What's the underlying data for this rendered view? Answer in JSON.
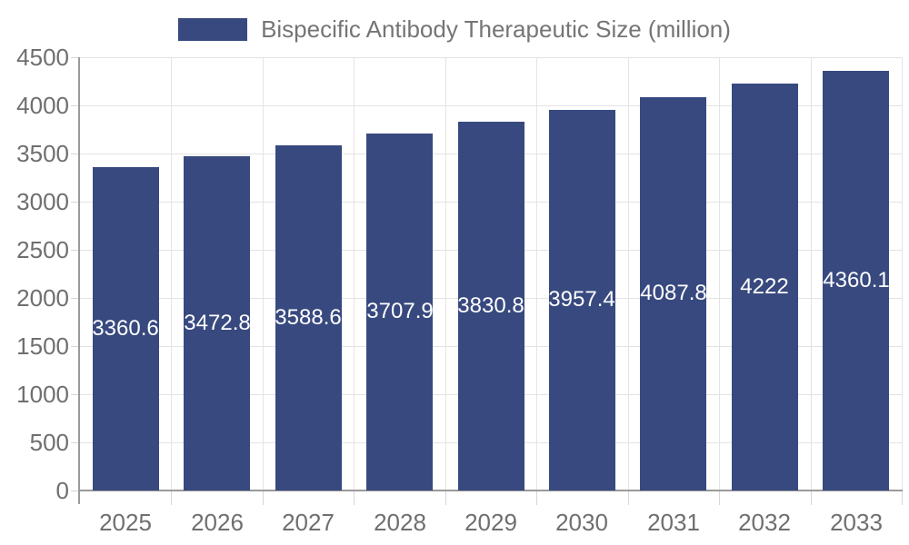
{
  "chart_data": {
    "type": "bar",
    "title": "Bispecific Antibody Therapeutic Size (million)",
    "legend_entries": [
      "Bispecific Antibody Therapeutic Size (million)"
    ],
    "legend_position": "top-center",
    "categories": [
      "2025",
      "2026",
      "2027",
      "2028",
      "2029",
      "2030",
      "2031",
      "2032",
      "2033"
    ],
    "values": [
      3360.6,
      3472.8,
      3588.6,
      3707.9,
      3830.8,
      3957.4,
      4087.8,
      4222,
      4360.1
    ],
    "value_labels": [
      "3360.6",
      "3472.8",
      "3588.6",
      "3707.9",
      "3830.8",
      "3957.4",
      "4087.8",
      "4222",
      "4360.1"
    ],
    "xlabel": "",
    "ylabel": "",
    "ylim": [
      0,
      4500
    ],
    "y_ticks": [
      0,
      500,
      1000,
      1500,
      2000,
      2500,
      3000,
      3500,
      4000,
      4500
    ],
    "grid": true,
    "colors": {
      "bar": "#38497f",
      "bar_label": "#ffffff",
      "axis_line": "#9a9a9a",
      "grid_line": "#e3e3e3",
      "tick_line": "#d6d6d6",
      "axis_text": "#6f6f6f",
      "legend_text": "#757575",
      "background": "#ffffff"
    }
  }
}
